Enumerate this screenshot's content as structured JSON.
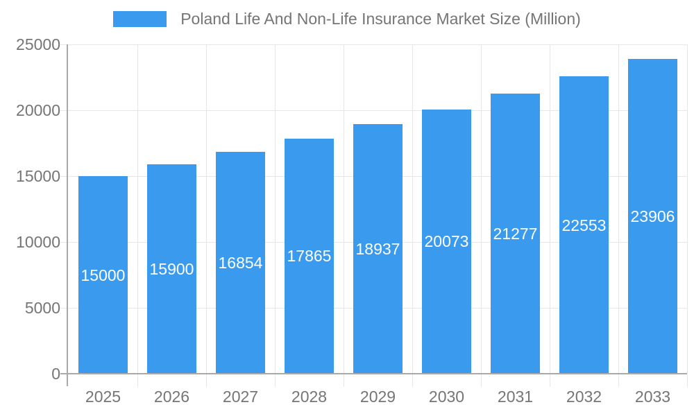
{
  "chart_data": {
    "type": "bar",
    "title": "Poland Life And Non-Life Insurance Market Size (Million)",
    "legend": {
      "position": "top",
      "label": "Poland Life And Non-Life Insurance Market Size (Million)"
    },
    "categories": [
      "2025",
      "2026",
      "2027",
      "2028",
      "2029",
      "2030",
      "2031",
      "2032",
      "2033"
    ],
    "values": [
      15000,
      15900,
      16854,
      17865,
      18937,
      20073,
      21277,
      22553,
      23906
    ],
    "bar_value_labels": [
      "15000",
      "15900",
      "16854",
      "17865",
      "18937",
      "20073",
      "21277",
      "22553",
      "23906"
    ],
    "xlabel": "",
    "ylabel": "",
    "ylim": [
      0,
      25000
    ],
    "ytick_labels": [
      "0",
      "5000",
      "10000",
      "15000",
      "20000",
      "25000"
    ],
    "yticks": [
      0,
      5000,
      10000,
      15000,
      20000,
      25000
    ],
    "grid": true,
    "colors": {
      "bar": "#3a9aee",
      "axis_text": "#757575",
      "bar_label_text": "#ffffff",
      "gridline": "#e6e6e6",
      "axis_line": "#a9a9a9",
      "background": "#ffffff"
    }
  }
}
